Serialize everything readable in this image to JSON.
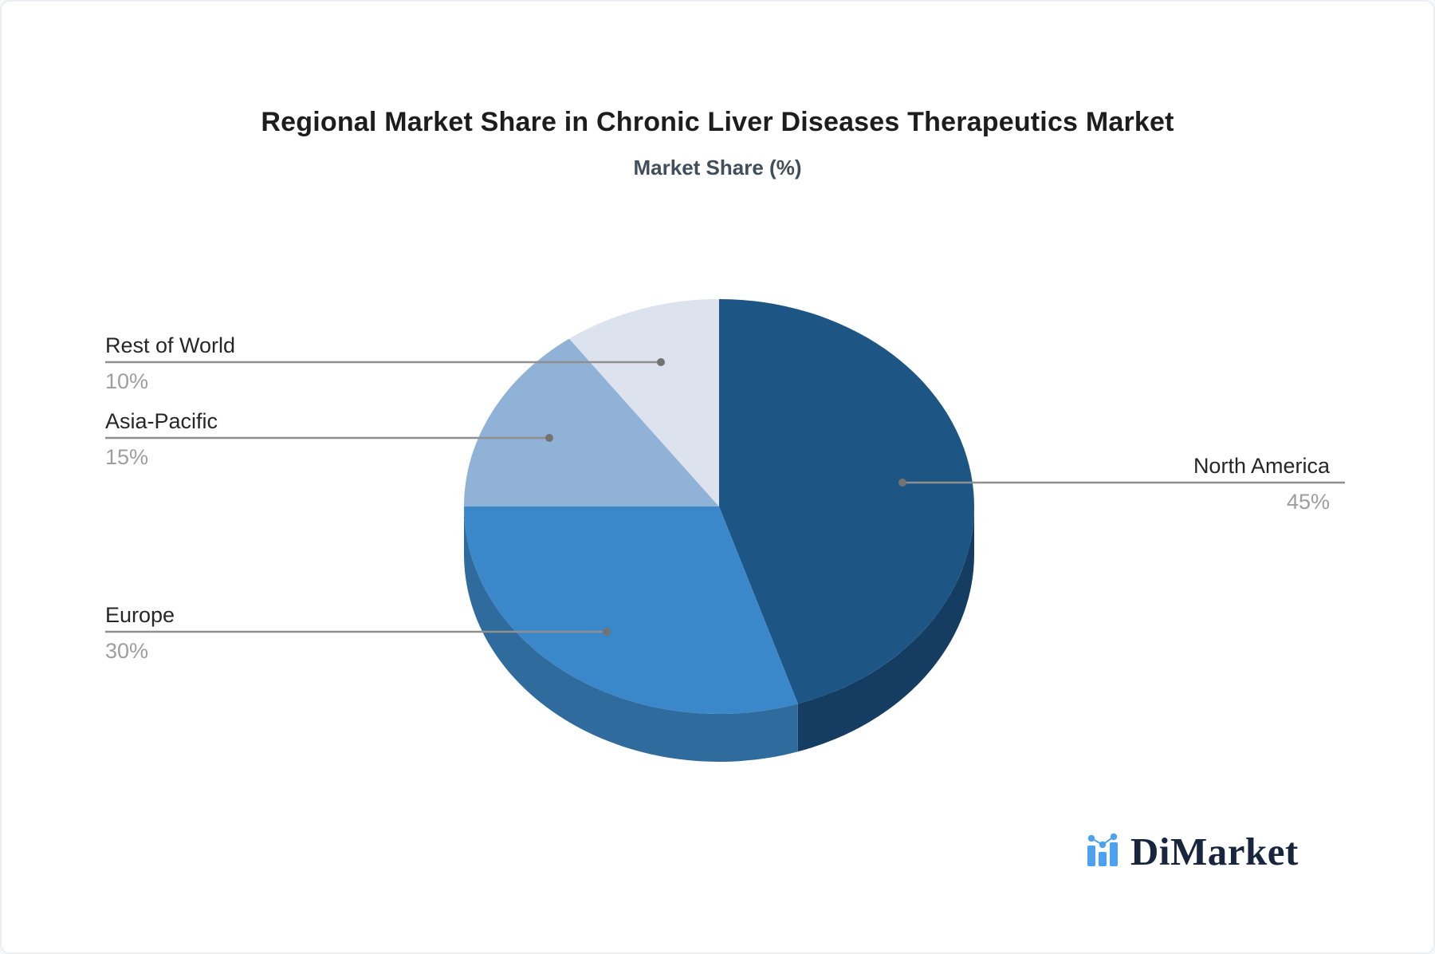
{
  "page": {
    "background": "#FFFFFF",
    "border_color": "#ECEEF1"
  },
  "chart_data": {
    "type": "pie",
    "title": "Regional Market Share in Chronic Liver Diseases Therapeutics Market",
    "subtitle": "Market Share (%)",
    "unit": "%",
    "effect": "3d-depth",
    "start_angle_deg": 0,
    "direction": "clockwise",
    "legend_position": "callout-labels",
    "categories": [
      "North America",
      "Europe",
      "Asia-Pacific",
      "Rest of World"
    ],
    "values": [
      45,
      30,
      15,
      10
    ],
    "slices": [
      {
        "label": "North America",
        "value": 45,
        "display": "45%",
        "color": "#1D5585",
        "side_color": "#153D61",
        "callout_side": "right"
      },
      {
        "label": "Europe",
        "value": 30,
        "display": "30%",
        "color": "#3A87C9",
        "side_color": "#2F6B9C",
        "callout_side": "left"
      },
      {
        "label": "Asia-Pacific",
        "value": 15,
        "display": "15%",
        "color": "#90B2D7",
        "callout_side": "left"
      },
      {
        "label": "Rest of World",
        "value": 10,
        "display": "10%",
        "color": "#DCE3EF",
        "callout_side": "left"
      }
    ],
    "label_color": "#262626",
    "value_color": "#9E9E9E",
    "leader_line_color": "#8F8F8F",
    "leader_dot_color": "#737373"
  },
  "brand": {
    "name": "DiMarket",
    "icon": "bar-line-chart-icon",
    "icon_color": "#4DA1F1",
    "text_color": "#17253F"
  }
}
